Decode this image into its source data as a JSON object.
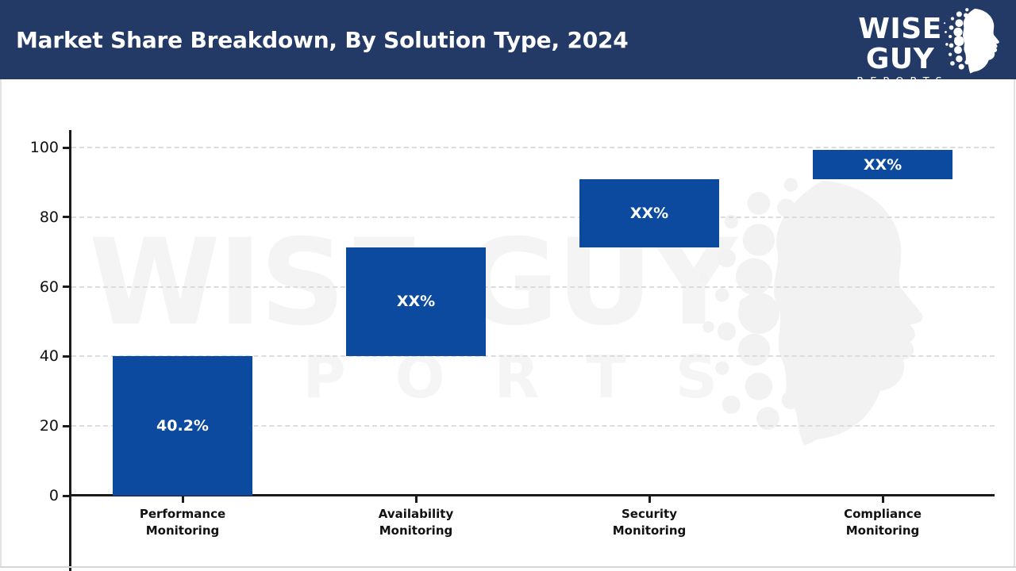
{
  "header": {
    "title": "Market Share Breakdown, By Solution Type, 2024",
    "logo_line1": "WISE GUY",
    "logo_line2": "REPORTS"
  },
  "watermark": {
    "line1": "WISE GUY",
    "line2": "REPORTS"
  },
  "chart_data": {
    "type": "bar",
    "subtype": "waterfall",
    "title": "Market Share Breakdown, By Solution Type, 2024",
    "categories": [
      "Performance Monitoring",
      "Availability Monitoring",
      "Security Monitoring",
      "Compliance Monitoring"
    ],
    "segments": [
      {
        "category": "Performance Monitoring",
        "category_lines": [
          "Performance",
          "Monitoring"
        ],
        "start": 0,
        "end": 40.2,
        "label": "40.2%"
      },
      {
        "category": "Availability Monitoring",
        "category_lines": [
          "Availability",
          "Monitoring"
        ],
        "start": 40.2,
        "end": 71.4,
        "label": "XX%"
      },
      {
        "category": "Security Monitoring",
        "category_lines": [
          "Security",
          "Monitoring"
        ],
        "start": 71.4,
        "end": 90.8,
        "label": "XX%"
      },
      {
        "category": "Compliance Monitoring",
        "category_lines": [
          "Compliance",
          "Monitoring"
        ],
        "start": 90.8,
        "end": 99.3,
        "label": "XX%"
      }
    ],
    "yticks": [
      0,
      20,
      40,
      60,
      80,
      100
    ],
    "ytick_labels": [
      "0",
      "20",
      "40",
      "60",
      "80",
      "100"
    ],
    "ylim": [
      0,
      105
    ],
    "xlabel": "",
    "ylabel": "",
    "grid": "horizontal-dashed",
    "legend": "none",
    "bar_color": "#0b4a9e"
  },
  "colors": {
    "header_bg": "#233a66",
    "bar": "#0b4a9e",
    "grid": "#dcdcdc",
    "axis": "#1a1a1a",
    "bar_label": "#ffffff",
    "watermark": "#f4f4f4",
    "bottom_rule": "#d6d6d6"
  }
}
